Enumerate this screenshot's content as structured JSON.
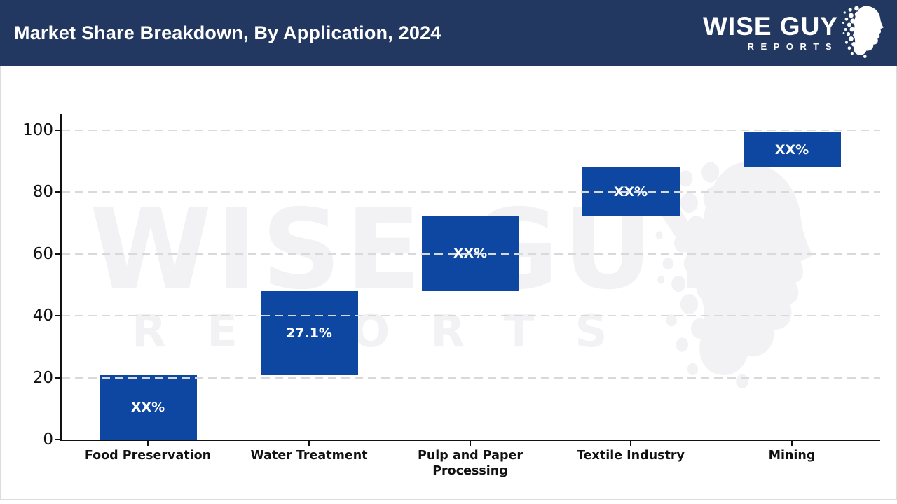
{
  "header": {
    "title": "Market Share Breakdown, By Application, 2024",
    "bg_color": "#233861",
    "logo": {
      "line1": "WISE GUY",
      "line2": "REPORTS"
    }
  },
  "watermark": {
    "line1": "WISE GUY",
    "line2": "REPORTS",
    "color": "#f2f2f4"
  },
  "chart_data": {
    "type": "bar",
    "subtype": "waterfall (floating stacked bars)",
    "title": "Market Share Breakdown, By Application, 2024",
    "categories": [
      "Food Preservation",
      "Water Treatment",
      "Pulp and Paper\nProcessing",
      "Textile Industry",
      "Mining"
    ],
    "values": [
      20.7,
      27.1,
      24.4,
      15.7,
      11.4
    ],
    "cumulative_start": [
      0,
      20.7,
      47.8,
      72.2,
      87.9
    ],
    "bar_labels": [
      "XX%",
      "27.1%",
      "XX%",
      "XX%",
      "XX%"
    ],
    "xlabel": "",
    "ylabel": "",
    "ylim": [
      0,
      105
    ],
    "yticks": [
      0,
      20,
      40,
      60,
      80,
      100
    ],
    "grid": "horizontal dashed",
    "legend": "none",
    "bar_color": "#0d47a1",
    "bar_label_color": "#ffffff",
    "axis_color": "#111111",
    "gridline_color": "#d9d9d9"
  }
}
